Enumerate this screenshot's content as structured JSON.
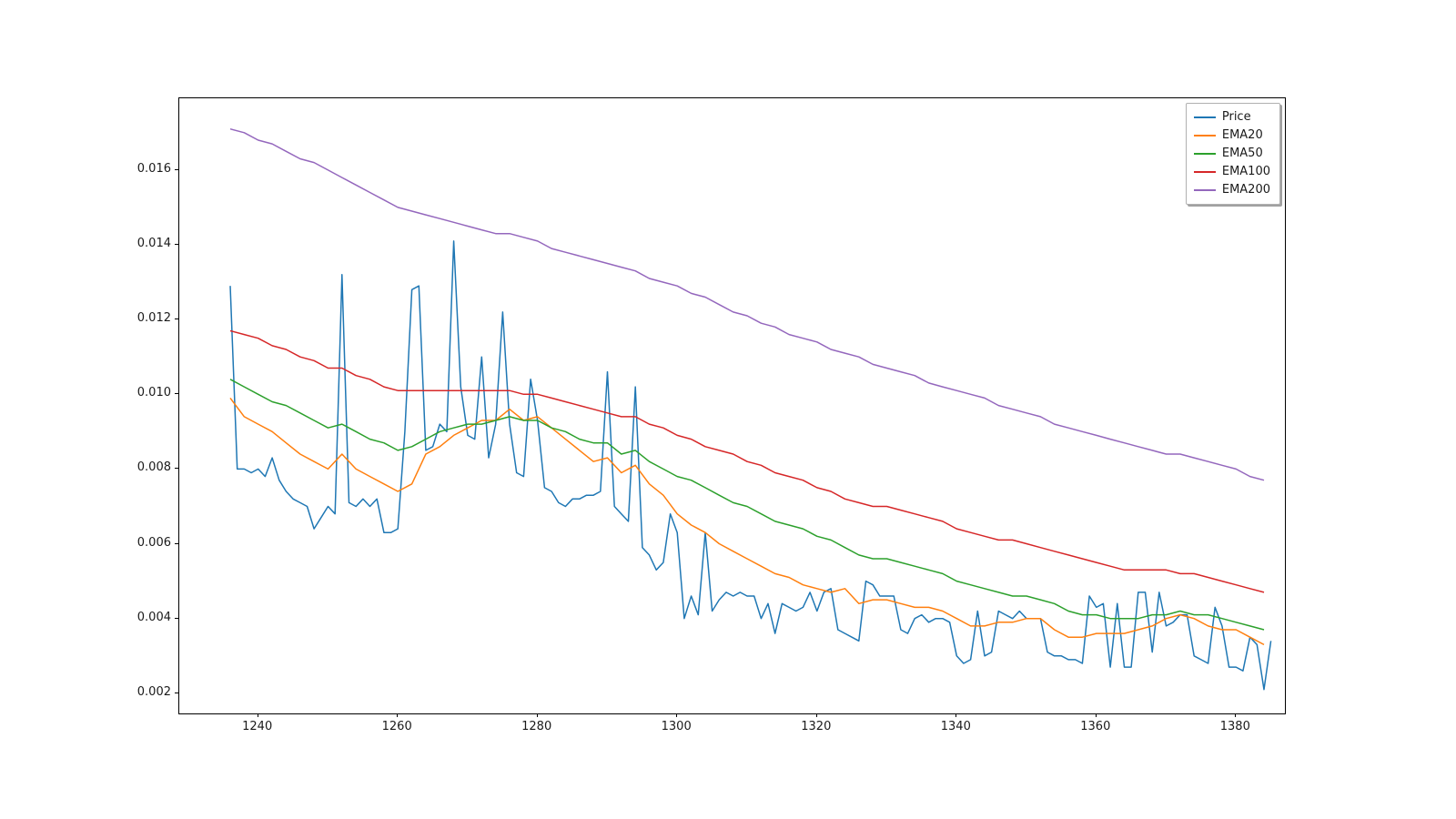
{
  "figure": {
    "background": "#ffffff"
  },
  "chart_data": {
    "type": "line",
    "title": "",
    "xlabel": "",
    "ylabel": "",
    "grid": false,
    "legend_position": "upper right",
    "xlim": [
      1228.7,
      1387.0
    ],
    "ylim": [
      0.00146,
      0.01792
    ],
    "x_ticks": {
      "values": [
        1240,
        1260,
        1280,
        1300,
        1320,
        1340,
        1360,
        1380
      ],
      "labels": [
        "1240",
        "1260",
        "1280",
        "1300",
        "1320",
        "1340",
        "1360",
        "1380"
      ]
    },
    "y_ticks": {
      "values": [
        0.002,
        0.004,
        0.006,
        0.008,
        0.01,
        0.012,
        0.014,
        0.016
      ],
      "labels": [
        "0.002",
        "0.004",
        "0.006",
        "0.008",
        "0.010",
        "0.012",
        "0.014",
        "0.016"
      ]
    },
    "series": [
      {
        "name": "Price",
        "color": "#1f77b4",
        "x_start": 1236,
        "x_step": 1,
        "values": [
          0.0129,
          0.008,
          0.008,
          0.0079,
          0.008,
          0.0078,
          0.0083,
          0.0077,
          0.0074,
          0.0072,
          0.0071,
          0.007,
          0.0064,
          0.0067,
          0.007,
          0.0068,
          0.0132,
          0.0071,
          0.007,
          0.0072,
          0.007,
          0.0072,
          0.0063,
          0.0063,
          0.0064,
          0.009,
          0.0128,
          0.0129,
          0.0085,
          0.0086,
          0.0092,
          0.009,
          0.0141,
          0.0102,
          0.0089,
          0.0088,
          0.011,
          0.0083,
          0.0092,
          0.0122,
          0.0092,
          0.0079,
          0.0078,
          0.0104,
          0.0093,
          0.0075,
          0.0074,
          0.0071,
          0.007,
          0.0072,
          0.0072,
          0.0073,
          0.0073,
          0.0074,
          0.0106,
          0.007,
          0.0068,
          0.0066,
          0.0102,
          0.0059,
          0.0057,
          0.0053,
          0.0055,
          0.0068,
          0.0063,
          0.004,
          0.0046,
          0.0041,
          0.0063,
          0.0042,
          0.0045,
          0.0047,
          0.0046,
          0.0047,
          0.0046,
          0.0046,
          0.004,
          0.0044,
          0.0036,
          0.0044,
          0.0043,
          0.0042,
          0.0043,
          0.0047,
          0.0042,
          0.0047,
          0.0048,
          0.0037,
          0.0036,
          0.0035,
          0.0034,
          0.005,
          0.0049,
          0.0046,
          0.0046,
          0.0046,
          0.0037,
          0.0036,
          0.004,
          0.0041,
          0.0039,
          0.004,
          0.004,
          0.0039,
          0.003,
          0.0028,
          0.0029,
          0.0042,
          0.003,
          0.0031,
          0.0042,
          0.0041,
          0.004,
          0.0042,
          0.004,
          0.004,
          0.004,
          0.0031,
          0.003,
          0.003,
          0.0029,
          0.0029,
          0.0028,
          0.0046,
          0.0043,
          0.0044,
          0.0027,
          0.0044,
          0.0027,
          0.0027,
          0.0047,
          0.0047,
          0.0031,
          0.0047,
          0.0038,
          0.0039,
          0.0041,
          0.0041,
          0.003,
          0.0029,
          0.0028,
          0.0043,
          0.0038,
          0.0027,
          0.0027,
          0.0026,
          0.0035,
          0.0033,
          0.0021,
          0.0034
        ]
      },
      {
        "name": "EMA20",
        "color": "#ff7f0e",
        "x_start": 1236,
        "x_step": 2,
        "values": [
          0.0099,
          0.0094,
          0.0092,
          0.009,
          0.0087,
          0.0084,
          0.0082,
          0.008,
          0.0084,
          0.008,
          0.0078,
          0.0076,
          0.0074,
          0.0076,
          0.0084,
          0.0086,
          0.0089,
          0.0091,
          0.0093,
          0.0093,
          0.0096,
          0.0093,
          0.0094,
          0.0091,
          0.0088,
          0.0085,
          0.0082,
          0.0083,
          0.0079,
          0.0081,
          0.0076,
          0.0073,
          0.0068,
          0.0065,
          0.0063,
          0.006,
          0.0058,
          0.0056,
          0.0054,
          0.0052,
          0.0051,
          0.0049,
          0.0048,
          0.0047,
          0.0048,
          0.0044,
          0.0045,
          0.0045,
          0.0044,
          0.0043,
          0.0043,
          0.0042,
          0.004,
          0.0038,
          0.0038,
          0.0039,
          0.0039,
          0.004,
          0.004,
          0.0037,
          0.0035,
          0.0035,
          0.0036,
          0.0036,
          0.0036,
          0.0037,
          0.0038,
          0.004,
          0.0041,
          0.004,
          0.0038,
          0.0037,
          0.0037,
          0.0035,
          0.0033
        ]
      },
      {
        "name": "EMA50",
        "color": "#2ca02c",
        "x_start": 1236,
        "x_step": 2,
        "values": [
          0.0104,
          0.0102,
          0.01,
          0.0098,
          0.0097,
          0.0095,
          0.0093,
          0.0091,
          0.0092,
          0.009,
          0.0088,
          0.0087,
          0.0085,
          0.0086,
          0.0088,
          0.009,
          0.0091,
          0.0092,
          0.0092,
          0.0093,
          0.0094,
          0.0093,
          0.0093,
          0.0091,
          0.009,
          0.0088,
          0.0087,
          0.0087,
          0.0084,
          0.0085,
          0.0082,
          0.008,
          0.0078,
          0.0077,
          0.0075,
          0.0073,
          0.0071,
          0.007,
          0.0068,
          0.0066,
          0.0065,
          0.0064,
          0.0062,
          0.0061,
          0.0059,
          0.0057,
          0.0056,
          0.0056,
          0.0055,
          0.0054,
          0.0053,
          0.0052,
          0.005,
          0.0049,
          0.0048,
          0.0047,
          0.0046,
          0.0046,
          0.0045,
          0.0044,
          0.0042,
          0.0041,
          0.0041,
          0.004,
          0.004,
          0.004,
          0.0041,
          0.0041,
          0.0042,
          0.0041,
          0.0041,
          0.004,
          0.0039,
          0.0038,
          0.0037
        ]
      },
      {
        "name": "EMA100",
        "color": "#d62728",
        "x_start": 1236,
        "x_step": 2,
        "values": [
          0.0117,
          0.0116,
          0.0115,
          0.0113,
          0.0112,
          0.011,
          0.0109,
          0.0107,
          0.0107,
          0.0105,
          0.0104,
          0.0102,
          0.0101,
          0.0101,
          0.0101,
          0.0101,
          0.0101,
          0.0101,
          0.0101,
          0.0101,
          0.0101,
          0.01,
          0.01,
          0.0099,
          0.0098,
          0.0097,
          0.0096,
          0.0095,
          0.0094,
          0.0094,
          0.0092,
          0.0091,
          0.0089,
          0.0088,
          0.0086,
          0.0085,
          0.0084,
          0.0082,
          0.0081,
          0.0079,
          0.0078,
          0.0077,
          0.0075,
          0.0074,
          0.0072,
          0.0071,
          0.007,
          0.007,
          0.0069,
          0.0068,
          0.0067,
          0.0066,
          0.0064,
          0.0063,
          0.0062,
          0.0061,
          0.0061,
          0.006,
          0.0059,
          0.0058,
          0.0057,
          0.0056,
          0.0055,
          0.0054,
          0.0053,
          0.0053,
          0.0053,
          0.0053,
          0.0052,
          0.0052,
          0.0051,
          0.005,
          0.0049,
          0.0048,
          0.0047
        ]
      },
      {
        "name": "EMA200",
        "color": "#9467bd",
        "x_start": 1236,
        "x_step": 2,
        "values": [
          0.0171,
          0.017,
          0.0168,
          0.0167,
          0.0165,
          0.0163,
          0.0162,
          0.016,
          0.0158,
          0.0156,
          0.0154,
          0.0152,
          0.015,
          0.0149,
          0.0148,
          0.0147,
          0.0146,
          0.0145,
          0.0144,
          0.0143,
          0.0143,
          0.0142,
          0.0141,
          0.0139,
          0.0138,
          0.0137,
          0.0136,
          0.0135,
          0.0134,
          0.0133,
          0.0131,
          0.013,
          0.0129,
          0.0127,
          0.0126,
          0.0124,
          0.0122,
          0.0121,
          0.0119,
          0.0118,
          0.0116,
          0.0115,
          0.0114,
          0.0112,
          0.0111,
          0.011,
          0.0108,
          0.0107,
          0.0106,
          0.0105,
          0.0103,
          0.0102,
          0.0101,
          0.01,
          0.0099,
          0.0097,
          0.0096,
          0.0095,
          0.0094,
          0.0092,
          0.0091,
          0.009,
          0.0089,
          0.0088,
          0.0087,
          0.0086,
          0.0085,
          0.0084,
          0.0084,
          0.0083,
          0.0082,
          0.0081,
          0.008,
          0.0078,
          0.0077
        ]
      }
    ]
  }
}
